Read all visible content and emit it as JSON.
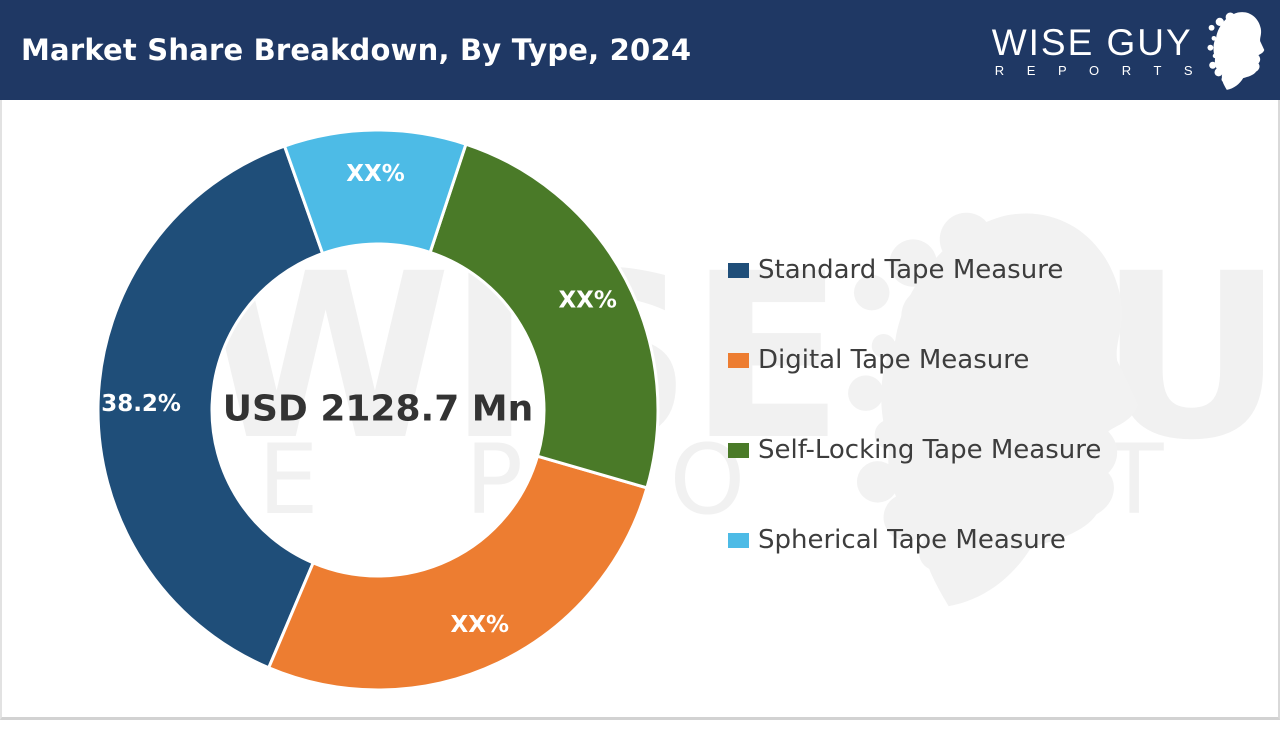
{
  "header": {
    "title": "Market Share Breakdown, By Type, 2024",
    "bg_color": "#1f3864",
    "logo": {
      "line1": "WISE GUY",
      "line2": "R E P O R T S"
    }
  },
  "watermark": {
    "line1": "WISE GUY",
    "line2": "E P O R T S"
  },
  "chart_data": {
    "type": "pie",
    "subtype": "donut",
    "title": "Market Share Breakdown, By Type, 2024",
    "center_label": "USD 2128.7 Mn",
    "legend_position": "right",
    "start_angle_deg": 109.5,
    "direction": "counterclockwise",
    "outer_radius_px": 280,
    "inner_radius_px": 166,
    "segments": [
      {
        "name": "Standard Tape Measure",
        "label": "38.2%",
        "value_pct": 38.2,
        "color": "#1f4e79"
      },
      {
        "name": "Digital Tape Measure",
        "label": "XX%",
        "value_pct": 26.9,
        "color": "#ed7d31"
      },
      {
        "name": "Self-Locking Tape Measure",
        "label": "XX%",
        "value_pct": 24.4,
        "color": "#4a7a28"
      },
      {
        "name": "Spherical Tape Measure",
        "label": "XX%",
        "value_pct": 10.5,
        "color": "#4dbbe6"
      }
    ]
  }
}
